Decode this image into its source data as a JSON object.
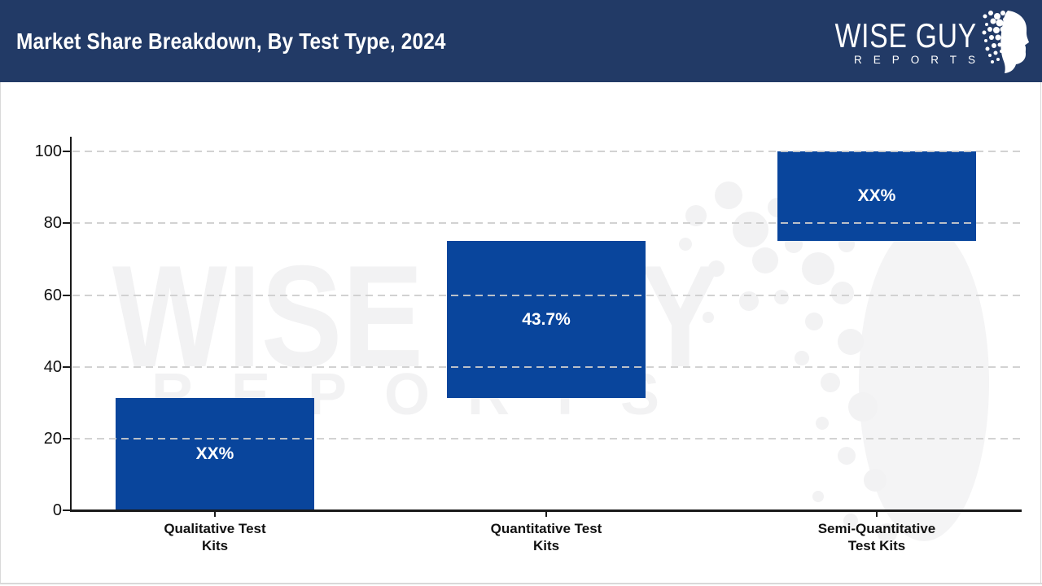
{
  "header": {
    "title": "Market Share Breakdown, By Test Type, 2024",
    "logo_line1": "WISE GUY",
    "logo_line2": "REPORTS"
  },
  "watermark": {
    "line1": "WISE GUY",
    "line2": "REPORTS"
  },
  "chart_data": {
    "type": "bar",
    "subtype": "waterfall-floating-bars",
    "title": "Market Share Breakdown, By Test Type, 2024",
    "categories": [
      "Qualitative Test Kits",
      "Quantitative Test Kits",
      "Semi-Quantitative Test Kits"
    ],
    "category_label_lines": [
      [
        "Qualitative Test",
        "Kits"
      ],
      [
        "Quantitative Test",
        "Kits"
      ],
      [
        "Semi-Quantitative",
        "Test Kits"
      ]
    ],
    "series": [
      {
        "name": "Market Share (%)",
        "segments": [
          {
            "category": "Qualitative Test Kits",
            "start": 0,
            "end": 31.3,
            "label": "XX%"
          },
          {
            "category": "Quantitative Test Kits",
            "start": 31.3,
            "end": 75.0,
            "label": "43.7%"
          },
          {
            "category": "Semi-Quantitative Test Kits",
            "start": 75.0,
            "end": 100.0,
            "label": "XX%"
          }
        ]
      }
    ],
    "ylim": [
      0,
      100
    ],
    "yticks": [
      0,
      20,
      40,
      60,
      80,
      100
    ],
    "xlabel": "",
    "ylabel": "",
    "grid": "horizontal-dashed",
    "legend": "none",
    "colors": {
      "bar": "#09459C",
      "bar_label": "#FFFFFF",
      "grid": "#CDCDCD",
      "axis": "#1A1A1A",
      "tick_label": "#111111",
      "header_bg": "#223A66",
      "title_text": "#FFFFFF",
      "watermark": "#F2F2F3"
    }
  }
}
